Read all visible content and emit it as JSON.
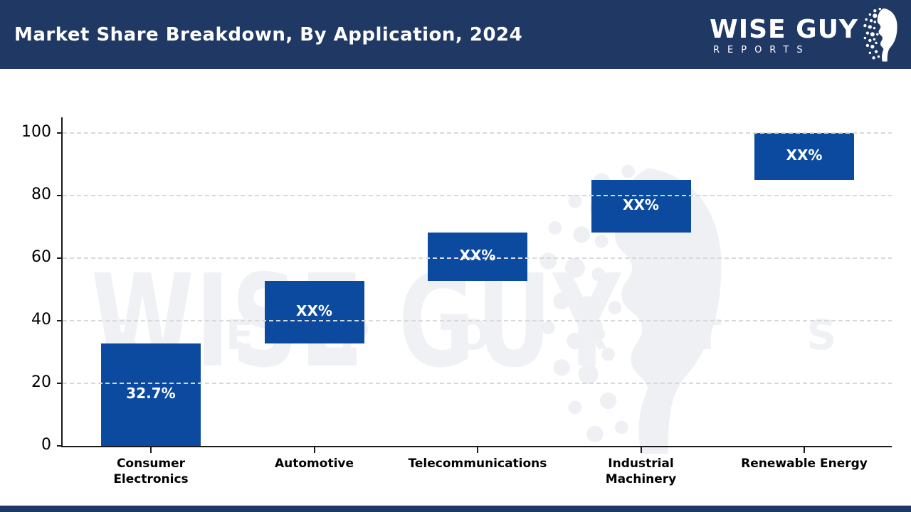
{
  "header": {
    "title": "Market Share Breakdown, By Application, 2024",
    "bg_color": "#1f3864",
    "logo": {
      "line1": "WISE GUY",
      "line2": "REPORTS"
    }
  },
  "watermark": {
    "line1": "WISE GUY",
    "line2": "R E P O R T S"
  },
  "footer": {
    "bg_color": "#1f3864"
  },
  "chart_data": {
    "type": "bar",
    "variant": "floating-waterfall",
    "title": "Market Share Breakdown, By Application, 2024",
    "categories": [
      "Consumer\nElectronics",
      "Automotive",
      "Telecommunications",
      "Industrial\nMachinery",
      "Renewable Energy"
    ],
    "segments": [
      {
        "category": "Consumer Electronics",
        "start": 0,
        "end": 32.7,
        "label": "32.7%"
      },
      {
        "category": "Automotive",
        "start": 32.7,
        "end": 52.7,
        "label": "XX%"
      },
      {
        "category": "Telecommunications",
        "start": 52.7,
        "end": 68.2,
        "label": "XX%"
      },
      {
        "category": "Industrial Machinery",
        "start": 68.2,
        "end": 85.0,
        "label": "XX%"
      },
      {
        "category": "Renewable Energy",
        "start": 85.0,
        "end": 100.0,
        "label": "XX%"
      }
    ],
    "yticks": [
      0,
      20,
      40,
      60,
      80,
      100
    ],
    "ylim": [
      0,
      105
    ],
    "grid": true,
    "legend": false,
    "xlabel": "",
    "ylabel": "",
    "bar_color": "#0b4a9f",
    "bar_label_color": "#ffffff",
    "grid_color": "#d9d9d9",
    "axis_color": "#1a1a1a",
    "tick_label_color": "#000000"
  }
}
